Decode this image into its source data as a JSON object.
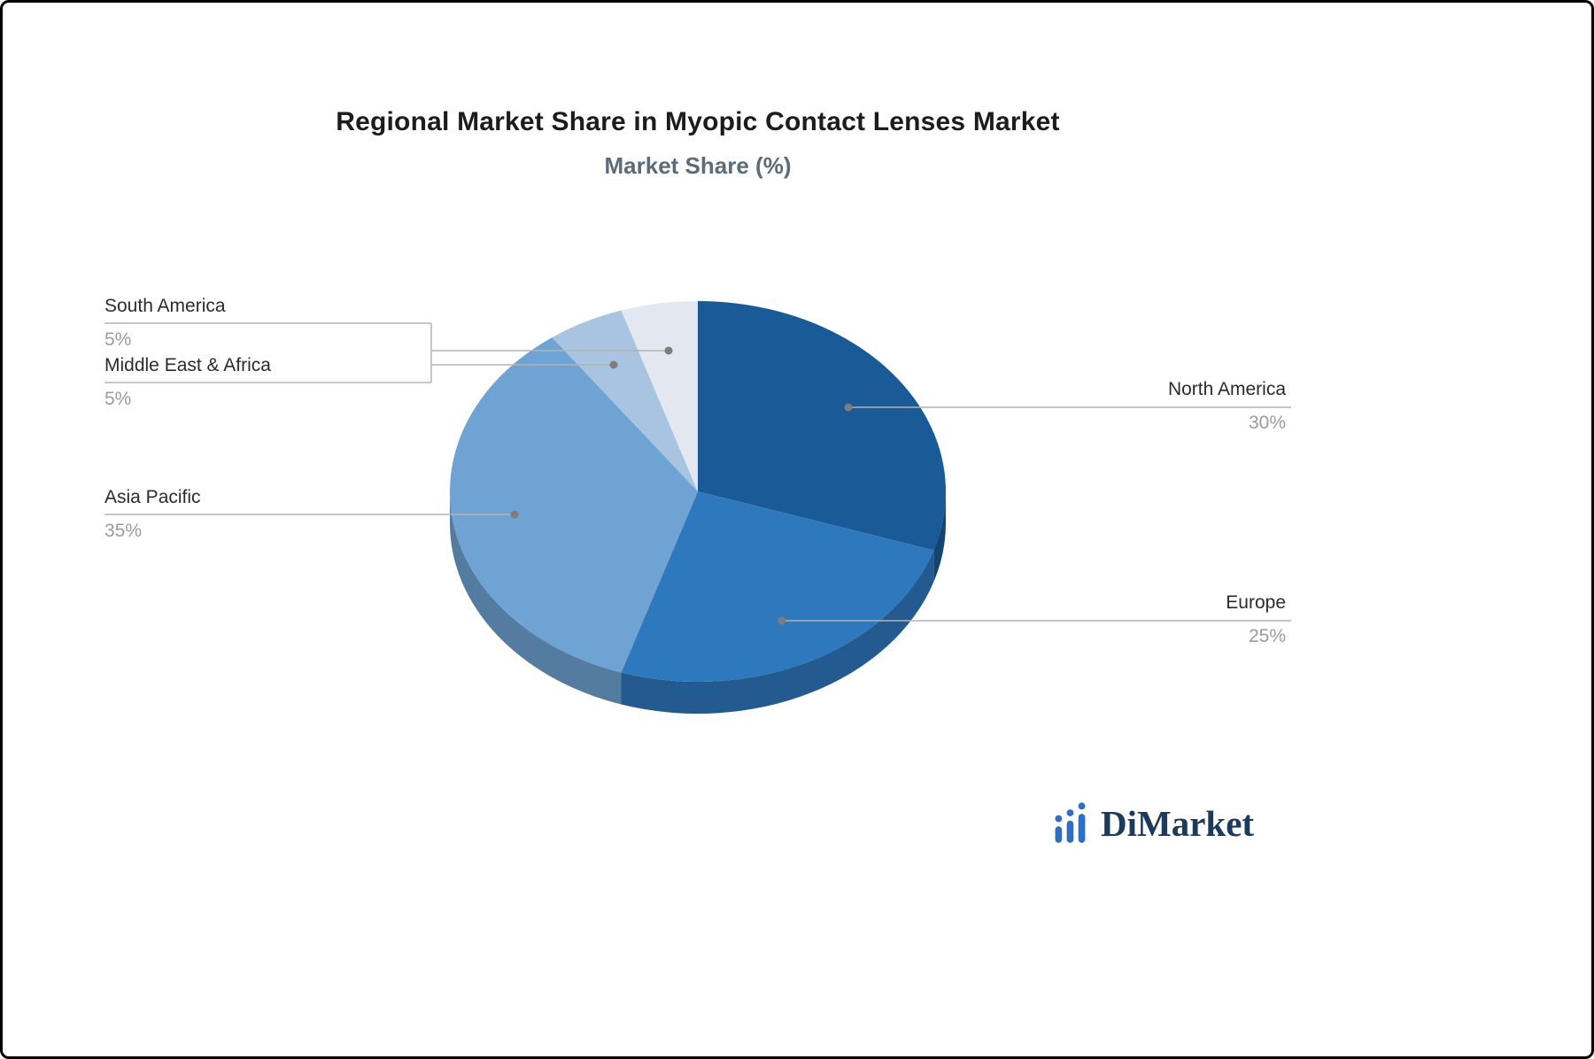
{
  "title": "Regional Market Share in Myopic Contact Lenses Market",
  "subtitle": "Market Share (%)",
  "logo": {
    "text": "DiMarket",
    "icon": "bar-chart-icon",
    "accent_color": "#2d6fc1",
    "text_color": "#1b3a5c"
  },
  "chart_data": {
    "type": "pie",
    "title": "Regional Market Share in Myopic Contact Lenses Market",
    "value_label": "Market Share (%)",
    "unit": "%",
    "start_angle_deg": -90,
    "direction": "clockwise",
    "style": "3d-pie",
    "legend_position": "callout-labels",
    "categories": [
      "North America",
      "Europe",
      "Asia Pacific",
      "Middle East & Africa",
      "South America"
    ],
    "values": [
      30,
      25,
      35,
      5,
      5
    ],
    "slices": [
      {
        "label": "North America",
        "value": 30,
        "display": "30%",
        "color": "#1a5a96"
      },
      {
        "label": "Europe",
        "value": 25,
        "display": "25%",
        "color": "#2e78bd"
      },
      {
        "label": "Asia Pacific",
        "value": 35,
        "display": "35%",
        "color": "#6fa3d4"
      },
      {
        "label": "Middle East & Africa",
        "value": 5,
        "display": "5%",
        "color": "#a9c4e0"
      },
      {
        "label": "South America",
        "value": 5,
        "display": "5%",
        "color": "#e3e8f0"
      }
    ]
  }
}
